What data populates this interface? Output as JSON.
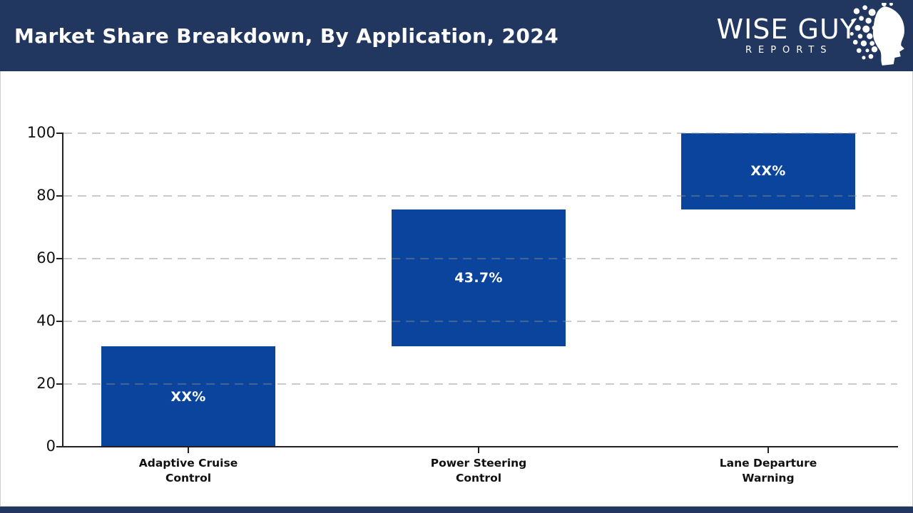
{
  "header": {
    "title": "Market Share Breakdown, By Application, 2024",
    "logo": {
      "line1": "WISE GUY",
      "line2": "REPORTS"
    }
  },
  "watermark": {
    "line1": "WISE GUY",
    "line2": "REPORTS"
  },
  "footer": {},
  "chart_data": {
    "type": "bar",
    "subtype": "waterfall-floating-bars",
    "title": "Market Share Breakdown, By Application, 2024",
    "categories": [
      "Adaptive Cruise Control",
      "Power Steering Control",
      "Lane Departure Warning"
    ],
    "category_lines": [
      [
        "Adaptive Cruise",
        "Control"
      ],
      [
        "Power Steering",
        "Control"
      ],
      [
        "Lane Departure",
        "Warning"
      ]
    ],
    "bars": [
      {
        "label": "XX%",
        "start": 0,
        "end": 32
      },
      {
        "label": "43.7%",
        "start": 32,
        "end": 75.7
      },
      {
        "label": "XX%",
        "start": 75.7,
        "end": 100
      }
    ],
    "xlabel": "",
    "ylabel": "",
    "ylim": [
      0,
      100
    ],
    "yticks": [
      0,
      20,
      40,
      60,
      80,
      100
    ],
    "grid": {
      "axis": "y",
      "style": "dashed",
      "above_bars": true
    },
    "legend": "none",
    "colors": {
      "bar": "#0a449c",
      "bar_value_label": "#ffffff",
      "header_bg": "#223760",
      "axis": "#212121",
      "gridline": "#c9c9c9",
      "watermark": "#f1f2f4"
    }
  }
}
